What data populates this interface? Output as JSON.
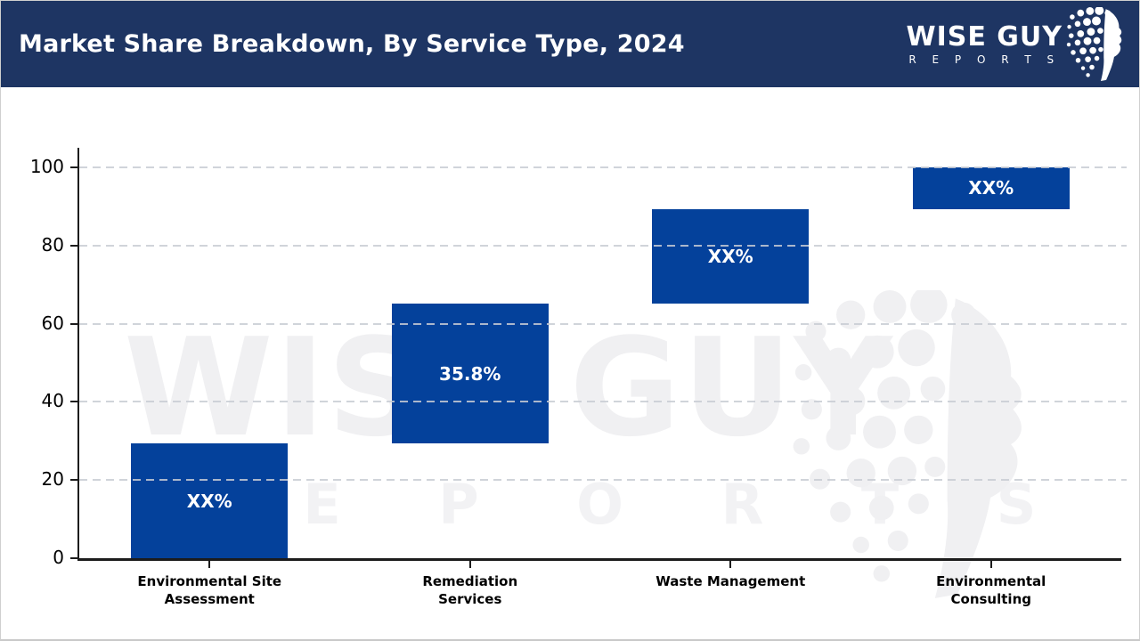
{
  "header": {
    "title": "Market Share Breakdown, By Service Type, 2024",
    "bg_color": "#1e3563",
    "logo": {
      "name": "WISE GUY",
      "sub": "R E P O R T S"
    }
  },
  "watermark": {
    "name": "WISE GUY",
    "sub": "R E P O R T S"
  },
  "chart_data": {
    "type": "bar",
    "subtype": "floating-waterfall-segments",
    "title": "Market Share Breakdown, By Service Type, 2024",
    "categories": [
      "Environmental Site\nAssessment",
      "Remediation\nServices",
      "Waste Management",
      "Environmental\nConsulting"
    ],
    "bars": [
      {
        "category": "Environmental Site Assessment",
        "start": 0,
        "end": 29.3,
        "label": "XX%"
      },
      {
        "category": "Remediation Services",
        "start": 29.3,
        "end": 65.1,
        "label": "35.8%"
      },
      {
        "category": "Waste Management",
        "start": 65.1,
        "end": 89.3,
        "label": "XX%"
      },
      {
        "category": "Environmental Consulting",
        "start": 89.3,
        "end": 100,
        "label": "XX%"
      }
    ],
    "yticks": [
      0,
      20,
      40,
      60,
      80,
      100
    ],
    "ylim": [
      0,
      105
    ],
    "grid": true,
    "grid_style": "dashed",
    "legend": null,
    "bar_color": "#04419b",
    "bar_label_color": "#ffffff",
    "axis_color": "#1c1c1c"
  }
}
